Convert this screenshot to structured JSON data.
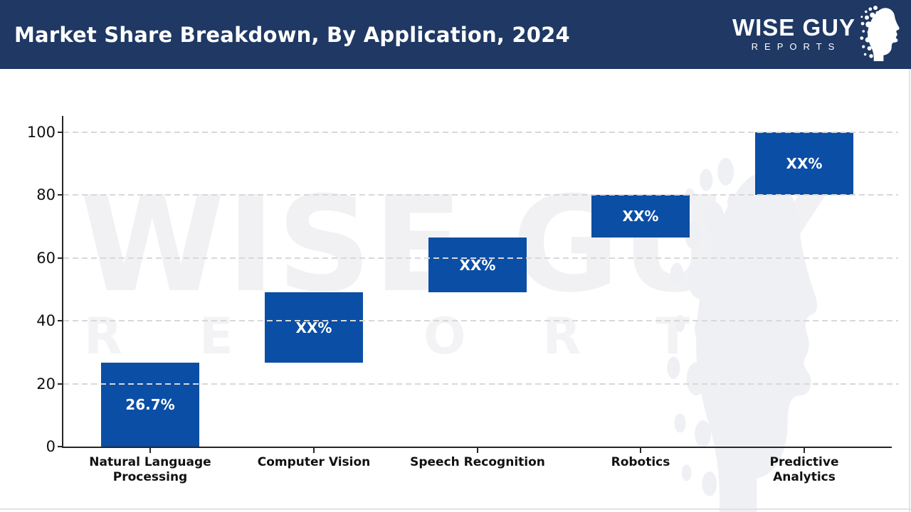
{
  "header": {
    "title": "Market Share Breakdown, By Application, 2024",
    "logo": {
      "line1": "WISE GUY",
      "line2": "REPORTS"
    }
  },
  "watermark": {
    "line1": "WISE GUY",
    "line2": "REPORTS"
  },
  "colors": {
    "header_bg": "#1F3864",
    "bar": "#0B4EA5",
    "axis": "#262626",
    "gridline": "#d8d8d8",
    "bar_label": "#ffffff",
    "watermark": "#f1f1f4"
  },
  "chart_data": {
    "type": "bar",
    "subtype": "waterfall",
    "title": "Market Share Breakdown, By Application, 2024",
    "xlabel": "",
    "ylabel": "",
    "ylim": [
      0,
      105
    ],
    "yticks": [
      0,
      20,
      40,
      60,
      80,
      100
    ],
    "grid": "horizontal dashed, drawn above bars",
    "legend": "none",
    "categories": [
      "Natural Language\nProcessing",
      "Computer Vision",
      "Speech Recognition",
      "Robotics",
      "Predictive\nAnalytics"
    ],
    "series": [
      {
        "name": "Market Share",
        "segments": [
          {
            "category": "Natural Language Processing",
            "start": 0,
            "end": 26.7,
            "value": 26.7,
            "label": "26.7%"
          },
          {
            "category": "Computer Vision",
            "start": 26.7,
            "end": 49.0,
            "value": 22.3,
            "label": "XX%"
          },
          {
            "category": "Speech Recognition",
            "start": 49.0,
            "end": 66.5,
            "value": 17.5,
            "label": "XX%"
          },
          {
            "category": "Robotics",
            "start": 66.5,
            "end": 80.0,
            "value": 13.5,
            "label": "XX%"
          },
          {
            "category": "Predictive Analytics",
            "start": 80.0,
            "end": 100.0,
            "value": 20.0,
            "label": "XX%"
          }
        ]
      }
    ]
  }
}
